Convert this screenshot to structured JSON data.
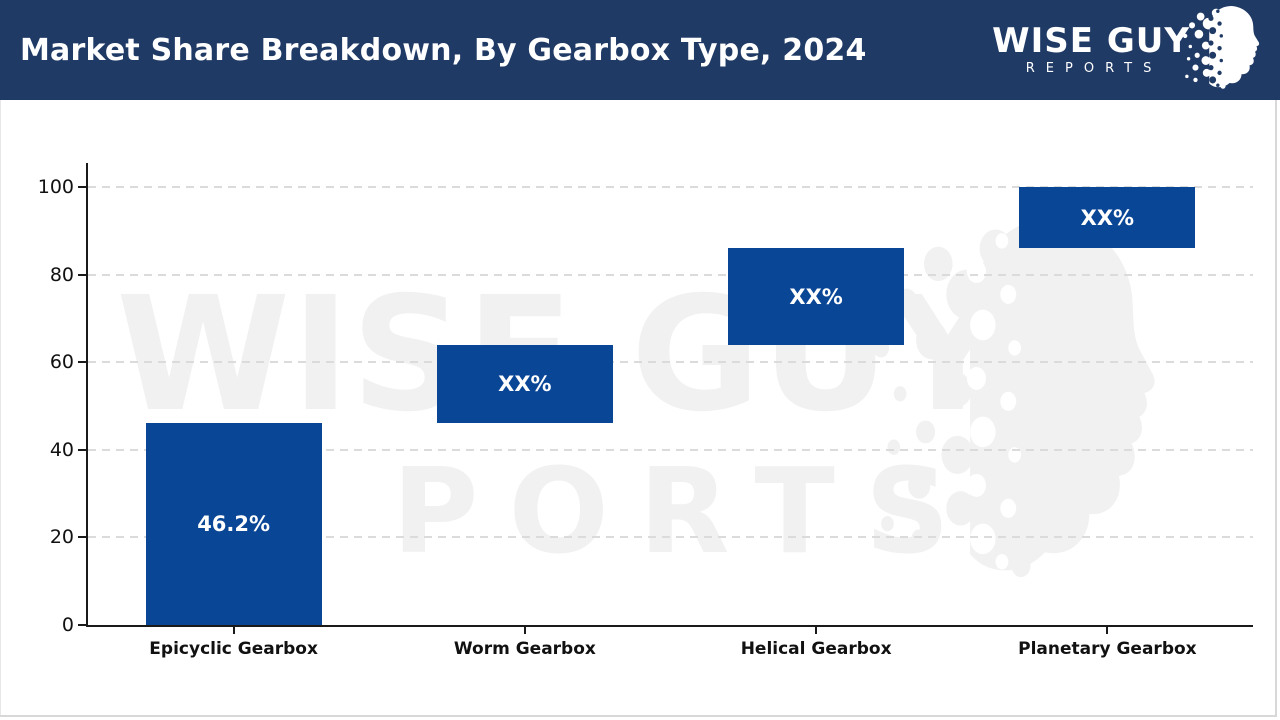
{
  "header": {
    "title": "Market Share Breakdown, By Gearbox Type, 2024",
    "logo": {
      "line1": "WISE GUY",
      "line2": "REPORTS"
    }
  },
  "watermark": {
    "line1": "WISE GUY",
    "line2": "PORTS"
  },
  "colors": {
    "header_bg": "#203A66",
    "bar_blue": "#0A4696",
    "grid_line": "#DBDBDB",
    "axis_line": "#1A1A1A",
    "text_dark": "#111111",
    "bar_label_text": "#FFFFFF",
    "watermark_gray": "#F1F1F2",
    "frame_border": "#D8D8D8"
  },
  "chart_data": {
    "type": "bar",
    "variant": "waterfall",
    "title": "Market Share Breakdown, By Gearbox Type, 2024",
    "categories": [
      "Epicyclic Gearbox",
      "Worm Gearbox",
      "Helical Gearbox",
      "Planetary Gearbox"
    ],
    "segments": [
      {
        "category": "Epicyclic Gearbox",
        "start": 0,
        "end": 46.2,
        "label": "46.2%"
      },
      {
        "category": "Worm Gearbox",
        "start": 46.2,
        "end": 64,
        "label": "XX%"
      },
      {
        "category": "Helical Gearbox",
        "start": 64,
        "end": 86,
        "label": "XX%"
      },
      {
        "category": "Planetary Gearbox",
        "start": 86,
        "end": 100,
        "label": "XX%"
      }
    ],
    "xlabel": "",
    "ylabel": "",
    "ylim": [
      0,
      100
    ],
    "yticks": [
      0,
      20,
      40,
      60,
      80,
      100
    ],
    "grid": "horizontal-dashed",
    "legend": "none"
  }
}
